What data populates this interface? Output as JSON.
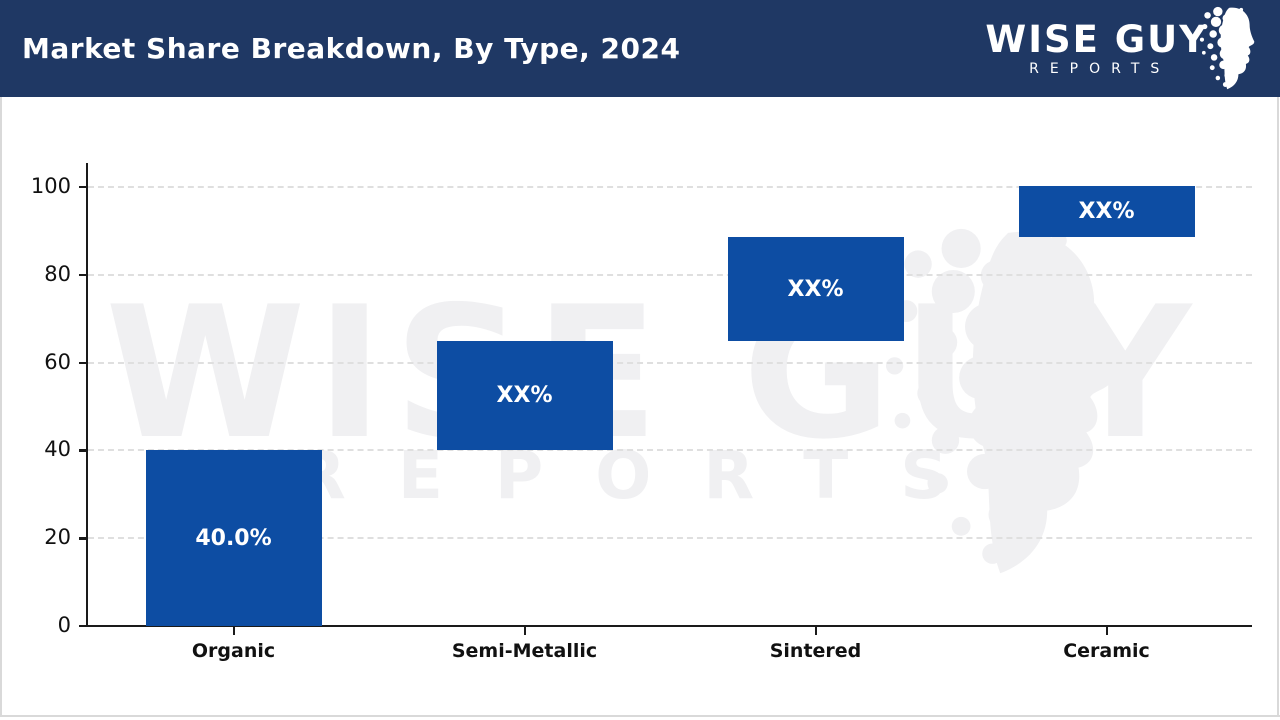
{
  "header": {
    "title": "Market Share Breakdown, By Type, 2024",
    "logo": {
      "line1": "WISE GUY",
      "line2": "REPORTS"
    },
    "bg_color": "#1f3864"
  },
  "watermark": {
    "line1": "WISE GUY",
    "line2": "REPORTS"
  },
  "chart_data": {
    "type": "bar",
    "subtype": "waterfall",
    "title": "Market Share Breakdown, By Type, 2024",
    "categories": [
      "Organic",
      "Semi-Metallic",
      "Sintered",
      "Ceramic"
    ],
    "segments": [
      {
        "category": "Organic",
        "start": 0,
        "end": 40,
        "label": "40.0%"
      },
      {
        "category": "Semi-Metallic",
        "start": 40,
        "end": 65,
        "label": "XX%"
      },
      {
        "category": "Sintered",
        "start": 65,
        "end": 88.5,
        "label": "XX%"
      },
      {
        "category": "Ceramic",
        "start": 88.5,
        "end": 100.3,
        "label": "XX%"
      }
    ],
    "yticks": [
      0,
      20,
      40,
      60,
      80,
      100
    ],
    "ylim": [
      0,
      105.5
    ],
    "xlabel": "",
    "ylabel": "",
    "grid": "horizontal-dashed",
    "legend": "none",
    "bar_color": "#0d4da3",
    "bar_label_color": "#ffffff",
    "axis_color": "#1a1a1a"
  }
}
